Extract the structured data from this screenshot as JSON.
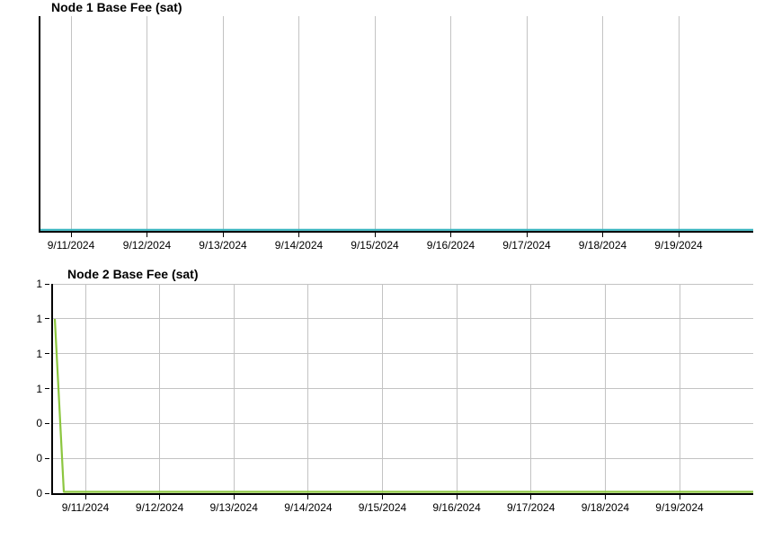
{
  "charts": [
    {
      "title": "Node 1 Base Fee (sat)",
      "x_tick_labels": [
        "9/11/2024",
        "9/12/2024",
        "9/13/2024",
        "9/14/2024",
        "9/15/2024",
        "9/16/2024",
        "9/17/2024",
        "9/18/2024",
        "9/19/2024"
      ],
      "y_tick_labels": [],
      "line_color": "#38b5c0",
      "grid_color": "#c3c3c3",
      "axis_color": "#000000",
      "text_color": "#000000"
    },
    {
      "title": "Node 2 Base Fee (sat)",
      "x_tick_labels": [
        "9/11/2024",
        "9/12/2024",
        "9/13/2024",
        "9/14/2024",
        "9/15/2024",
        "9/16/2024",
        "9/17/2024",
        "9/18/2024",
        "9/19/2024"
      ],
      "y_tick_labels": [
        "1",
        "1",
        "1",
        "1",
        "0",
        "0",
        "0"
      ],
      "line_color": "#8cc63f",
      "grid_color": "#c3c3c3",
      "axis_color": "#000000",
      "text_color": "#000000"
    }
  ],
  "chart_data": [
    {
      "type": "line",
      "title": "Node 1 Base Fee (sat)",
      "xlabel": "",
      "ylabel": "",
      "x_tick_labels": [
        "9/11/2024",
        "9/12/2024",
        "9/13/2024",
        "9/14/2024",
        "9/15/2024",
        "9/16/2024",
        "9/17/2024",
        "9/18/2024",
        "9/19/2024"
      ],
      "x_range_estimate": [
        "9/10/2024 ~14:00",
        "9/20/2024 ~00:00"
      ],
      "y_axis": {
        "tick_labels_shown": false
      },
      "grid": {
        "vertical": true,
        "horizontal": false
      },
      "legend": "none",
      "series": [
        {
          "name": "Node 1 base fee (sat)",
          "color": "#38b5c0",
          "points": [
            {
              "x": "9/10/2024 ~14:00",
              "y": 0
            },
            {
              "x": "9/20/2024 ~00:00",
              "y": 0
            }
          ],
          "description": "flat line at 0 sat across the entire visible date range"
        }
      ]
    },
    {
      "type": "line",
      "title": "Node 2 Base Fee (sat)",
      "xlabel": "",
      "ylabel": "",
      "x_tick_labels": [
        "9/11/2024",
        "9/12/2024",
        "9/13/2024",
        "9/14/2024",
        "9/15/2024",
        "9/16/2024",
        "9/17/2024",
        "9/18/2024",
        "9/19/2024"
      ],
      "x_range_estimate": [
        "9/10/2024 ~13:30",
        "9/20/2024 ~00:00"
      ],
      "y_axis": {
        "tick_labels_top_to_bottom": [
          "1",
          "1",
          "1",
          "1",
          "0",
          "0",
          "0"
        ],
        "range": [
          0,
          1.2
        ],
        "tick_step": 0.2,
        "note": "tick labels are rounded to whole numbers"
      },
      "grid": {
        "vertical": true,
        "horizontal": true
      },
      "legend": "none",
      "series": [
        {
          "name": "Node 2 base fee (sat)",
          "color": "#8cc63f",
          "points": [
            {
              "x": "9/10/2024 ~13:30",
              "y": 1
            },
            {
              "x": "9/10/2024 ~17:30",
              "y": 0
            },
            {
              "x": "9/20/2024 ~00:00",
              "y": 0
            }
          ],
          "description": "starts at 1 sat at the left edge, drops steeply to 0 just before 9/11, then stays at 0"
        }
      ]
    }
  ]
}
